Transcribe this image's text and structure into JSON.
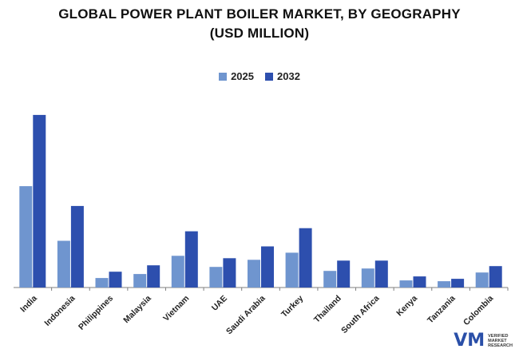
{
  "chart_data": {
    "type": "bar",
    "title_line1": "GLOBAL POWER PLANT BOILER MARKET, BY GEOGRAPHY",
    "title_line2": "(USD MILLION)",
    "categories": [
      "India",
      "Indonesia",
      "Philippines",
      "Malaysia",
      "Vietnam",
      "UAE",
      "Saudi Arabia",
      "Turkey",
      "Thailand",
      "South Africa",
      "Kenya",
      "Tanzania",
      "Colombia"
    ],
    "series": [
      {
        "name": "2025",
        "color": "#6f95cf",
        "values": [
          128,
          59,
          12,
          17,
          40,
          26,
          35,
          44,
          21,
          24,
          9,
          8,
          19
        ]
      },
      {
        "name": "2032",
        "color": "#2d4fae",
        "values": [
          218,
          103,
          20,
          28,
          71,
          37,
          52,
          75,
          34,
          34,
          14,
          11,
          27
        ]
      }
    ],
    "ylim": [
      0,
      230
    ],
    "grid": false,
    "legend_position": "top-center"
  },
  "branding": {
    "logo_icon": "vmr-logo-icon",
    "logo_mark": "VM",
    "logo_line1": "VERIFIED",
    "logo_line2": "MARKET",
    "logo_line3": "RESEARCH"
  }
}
